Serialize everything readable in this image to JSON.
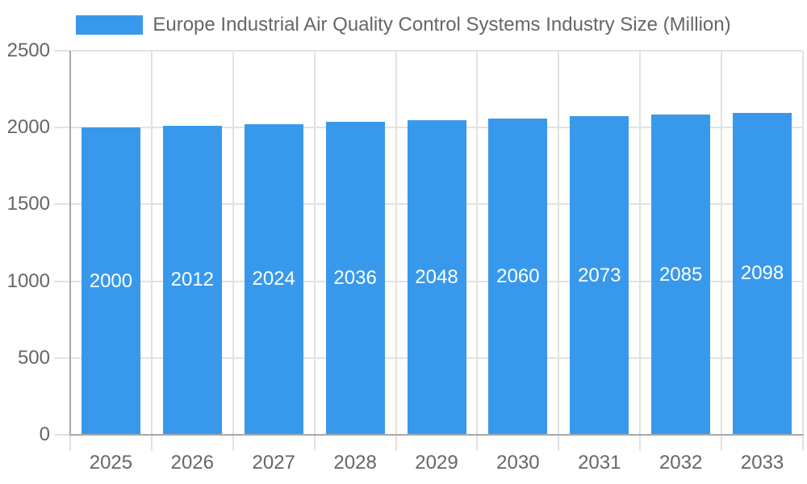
{
  "legend": {
    "label": "Europe Industrial Air Quality Control Systems Industry Size (Million)"
  },
  "colors": {
    "bar": "#3899EC",
    "grid": "#E2E2E2",
    "axis": "#A8A8A8",
    "text": "#666666",
    "bar_label": "#FFFFFF",
    "background": "#FFFFFF"
  },
  "chart_data": {
    "type": "bar",
    "title": "Europe Industrial Air Quality Control Systems Industry Size (Million)",
    "categories": [
      "2025",
      "2026",
      "2027",
      "2028",
      "2029",
      "2030",
      "2031",
      "2032",
      "2033"
    ],
    "values": [
      2000,
      2012,
      2024,
      2036,
      2048,
      2060,
      2073,
      2085,
      2098
    ],
    "xlabel": "",
    "ylabel": "",
    "y_ticks": [
      0,
      500,
      1000,
      1500,
      2000,
      2500
    ],
    "ylim": [
      0,
      2500
    ],
    "grid": true,
    "legend_position": "top",
    "bar_value_labels": "inside-center"
  }
}
